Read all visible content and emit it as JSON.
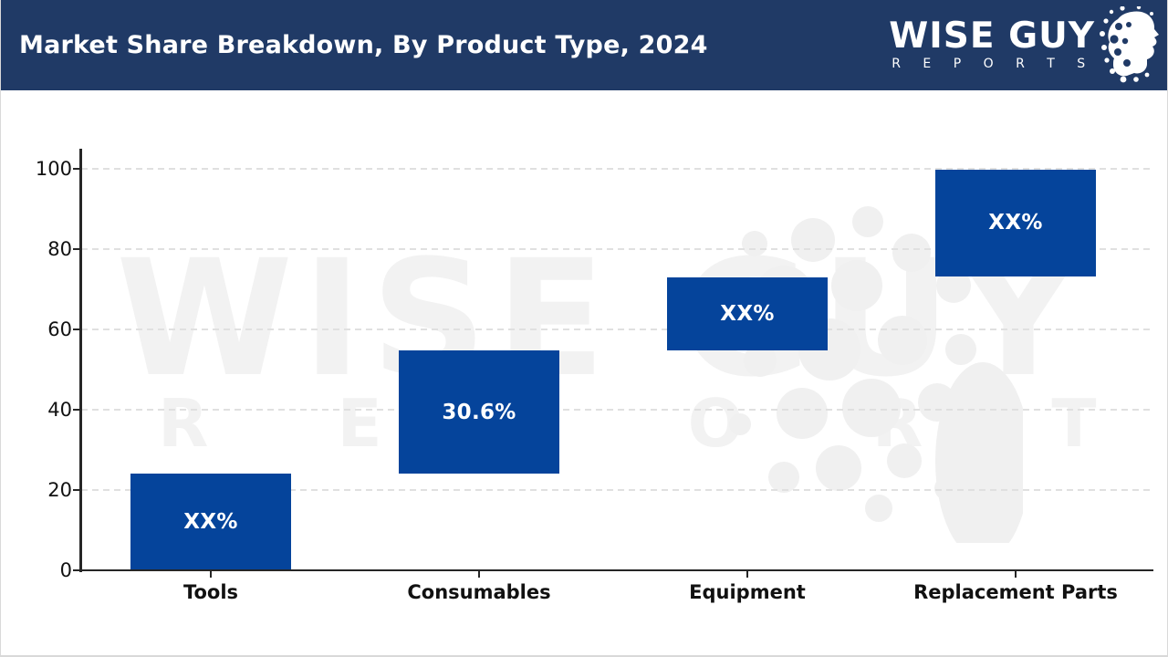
{
  "header": {
    "title": "Market Share Breakdown, By Product Type, 2024",
    "logo": {
      "brand_line1": "WISE GUY",
      "brand_line2": "R E P O R T S"
    }
  },
  "watermark": {
    "line1": "WISE GUY",
    "line2": "R E P O R T S"
  },
  "colors": {
    "header_bg": "#203a66",
    "bar_fill": "#05449b",
    "bar_label": "#ffffff",
    "grid_line": "#e0e0e0",
    "axis_line": "#262626",
    "tick_text": "#111111",
    "watermark_text": "#f2f2f2"
  },
  "chart_data": {
    "type": "bar",
    "subtype": "floating-waterfall",
    "title": "Market Share Breakdown, By Product Type, 2024",
    "categories": [
      "Tools",
      "Consumables",
      "Equipment",
      "Replacement Parts"
    ],
    "segments": [
      {
        "category": "Tools",
        "start": 0,
        "end": 24.1,
        "label": "XX%"
      },
      {
        "category": "Consumables",
        "start": 24.1,
        "end": 54.7,
        "label": "30.6%"
      },
      {
        "category": "Equipment",
        "start": 54.7,
        "end": 73.0,
        "label": "XX%"
      },
      {
        "category": "Replacement Parts",
        "start": 73.2,
        "end": 99.8,
        "label": "XX%"
      }
    ],
    "value_unit": "%",
    "yticks": [
      0,
      20,
      40,
      60,
      80,
      100
    ],
    "ylim": [
      0,
      105
    ],
    "xlabel": "",
    "ylabel": "",
    "grid": "horizontal-dashed",
    "legend": "none",
    "bar_color": "#05449b",
    "label_color": "#ffffff"
  }
}
